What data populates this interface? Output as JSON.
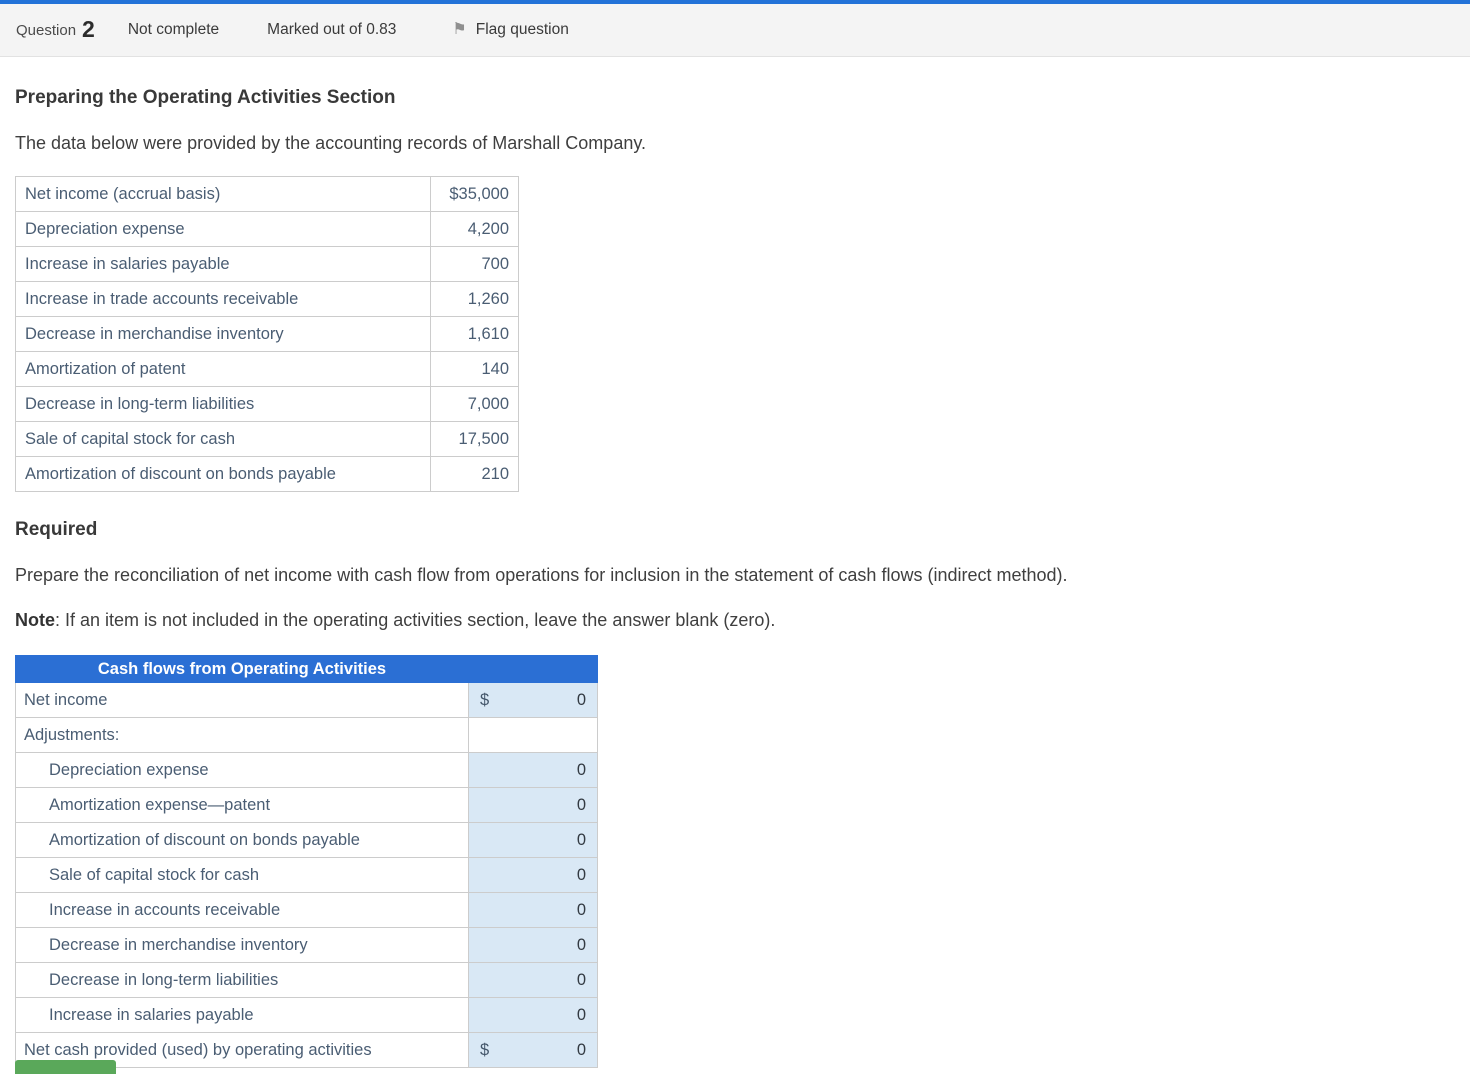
{
  "header": {
    "question_label": "Question",
    "question_number": "2",
    "status": "Not complete",
    "marked": "Marked out of 0.83",
    "flag_label": "Flag question",
    "flag_icon": "flag-icon"
  },
  "content": {
    "title": "Preparing the Operating Activities Section",
    "intro": "The data below were provided by the accounting records of Marshall Company.",
    "data_table": {
      "rows": [
        {
          "label": "Net income (accrual basis)",
          "value": "$35,000"
        },
        {
          "label": "Depreciation expense",
          "value": "4,200"
        },
        {
          "label": "Increase in salaries payable",
          "value": "700"
        },
        {
          "label": "Increase in trade accounts receivable",
          "value": "1,260"
        },
        {
          "label": "Decrease in merchandise inventory",
          "value": "1,610"
        },
        {
          "label": "Amortization of patent",
          "value": "140"
        },
        {
          "label": "Decrease in long-term liabilities",
          "value": "7,000"
        },
        {
          "label": "Sale of capital stock for cash",
          "value": "17,500"
        },
        {
          "label": "Amortization of discount on bonds payable",
          "value": "210"
        }
      ]
    },
    "required_heading": "Required",
    "required_text": "Prepare the reconciliation of net income with cash flow from operations for inclusion in the statement of cash flows (indirect method).",
    "note_bold": "Note",
    "note_text": ": If an item is not included in the operating activities section, leave the answer blank (zero).",
    "answer_table": {
      "header": "Cash flows from Operating Activities",
      "rows": [
        {
          "label": "Net income",
          "prefix": "$",
          "value": "0",
          "indent": false,
          "input": true
        },
        {
          "label": "Adjustments:",
          "prefix": "",
          "value": "",
          "indent": false,
          "input": false
        },
        {
          "label": "Depreciation expense",
          "prefix": "",
          "value": "0",
          "indent": true,
          "input": true
        },
        {
          "label": "Amortization expense—patent",
          "prefix": "",
          "value": "0",
          "indent": true,
          "input": true
        },
        {
          "label": "Amortization of discount on bonds payable",
          "prefix": "",
          "value": "0",
          "indent": true,
          "input": true
        },
        {
          "label": "Sale of capital stock for cash",
          "prefix": "",
          "value": "0",
          "indent": true,
          "input": true
        },
        {
          "label": "Increase in accounts receivable",
          "prefix": "",
          "value": "0",
          "indent": true,
          "input": true
        },
        {
          "label": "Decrease in merchandise inventory",
          "prefix": "",
          "value": "0",
          "indent": true,
          "input": true
        },
        {
          "label": "Decrease in long-term liabilities",
          "prefix": "",
          "value": "0",
          "indent": true,
          "input": true
        },
        {
          "label": "Increase in salaries payable",
          "prefix": "",
          "value": "0",
          "indent": true,
          "input": true
        },
        {
          "label": "Net cash provided (used) by operating activities",
          "prefix": "$",
          "value": "0",
          "indent": false,
          "input": true
        }
      ]
    }
  },
  "colors": {
    "top_bar_blue": "#2272d8",
    "answer_header_blue": "#2b6fd4",
    "input_cell_blue": "#d9e8f5",
    "table_text": "#4a5d73",
    "check_button_green": "#5aa85a",
    "header_bar_gray": "#f4f4f4"
  }
}
